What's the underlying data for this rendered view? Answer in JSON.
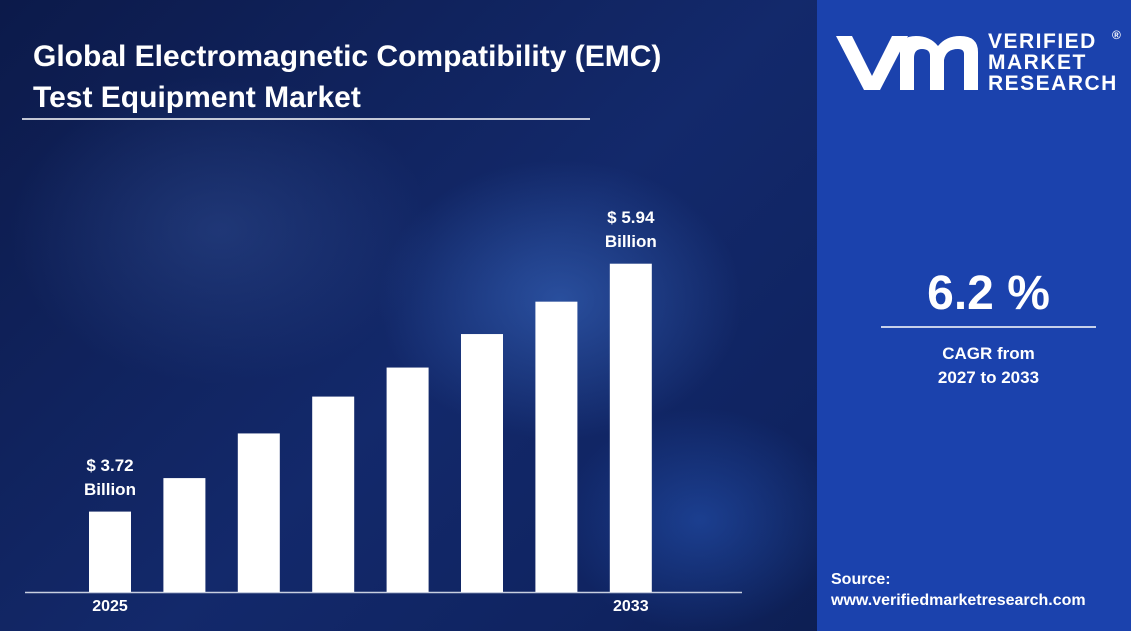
{
  "title": "Global Electromagnetic Compatibility (EMC) Test Equipment Market",
  "chart_data": {
    "type": "bar",
    "categories": [
      "2025",
      null,
      null,
      null,
      null,
      null,
      null,
      "2033"
    ],
    "values": [
      3.72,
      4.02,
      4.42,
      4.75,
      5.01,
      5.31,
      5.6,
      5.94
    ],
    "value_labels": [
      "$ 3.72 Billion",
      null,
      null,
      null,
      null,
      null,
      null,
      "$ 5.94 Billion"
    ],
    "color": "#ffffff",
    "ylim": [
      3,
      6
    ]
  },
  "cagr": {
    "value": "6.2 %",
    "label": "CAGR from 2027 to 2033"
  },
  "logo": {
    "line1": "VERIFIED",
    "line2": "MARKET",
    "line3": "RESEARCH",
    "mark": "®"
  },
  "source": {
    "label": "Source:",
    "url": "www.verifiedmarketresearch.com"
  }
}
